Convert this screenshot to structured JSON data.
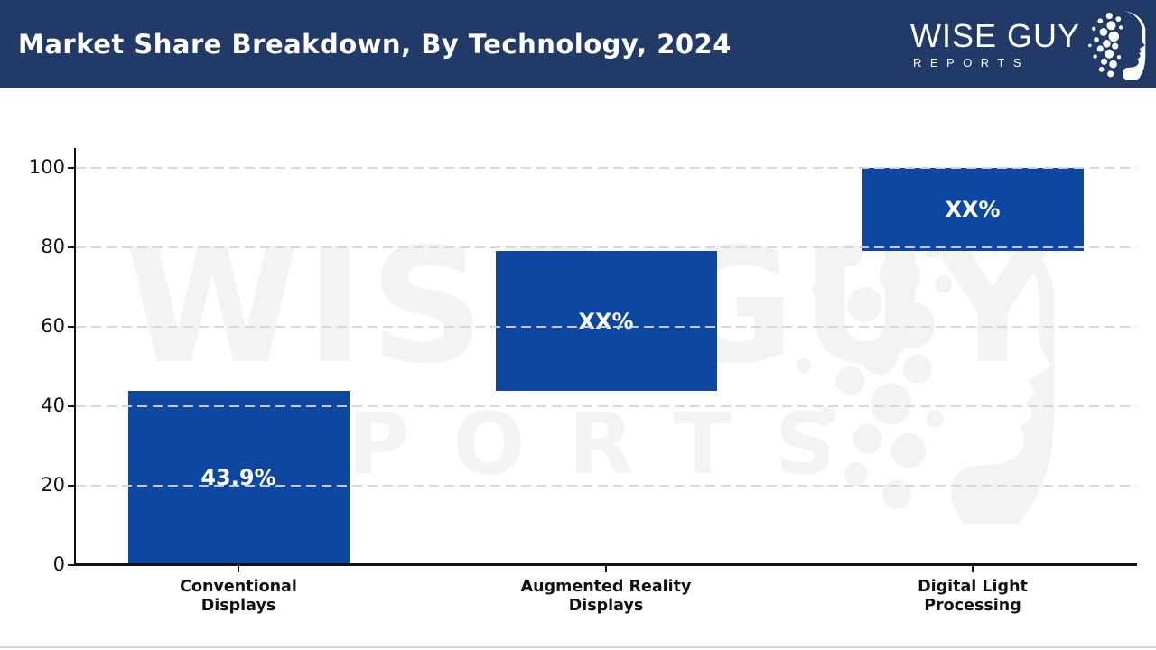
{
  "header": {
    "title": "Market Share Breakdown, By Technology, 2024",
    "logo": {
      "line1": "WISE GUY",
      "line2": "REPORTS"
    }
  },
  "watermark": {
    "line1": "WISE GUY",
    "line2": "REPORTS"
  },
  "chart_data": {
    "type": "bar",
    "subtype": "waterfall",
    "title": "Market Share Breakdown, By Technology, 2024",
    "categories": [
      "Conventional\nDisplays",
      "Augmented Reality\nDisplays",
      "Digital Light\nProcessing"
    ],
    "segments": [
      {
        "category": "Conventional Displays",
        "start": 0,
        "end": 43.9,
        "label": "43.9%"
      },
      {
        "category": "Augmented Reality Displays",
        "start": 43.9,
        "end": 79,
        "label": "XX%"
      },
      {
        "category": "Digital Light Processing",
        "start": 79,
        "end": 100,
        "label": "XX%"
      }
    ],
    "ylim": [
      0,
      100
    ],
    "yticks": [
      0,
      20,
      40,
      60,
      80,
      100
    ],
    "grid": "horizontal-dashed",
    "legend": "none",
    "bar_color": "#0d47a1"
  },
  "colors": {
    "header_bg": "#223a68",
    "bar": "#0d47a1",
    "gridline": "#d8d8d8",
    "axis": "#111111",
    "watermark": "#f3f3f3",
    "footer_line": "#d9d9d9"
  }
}
